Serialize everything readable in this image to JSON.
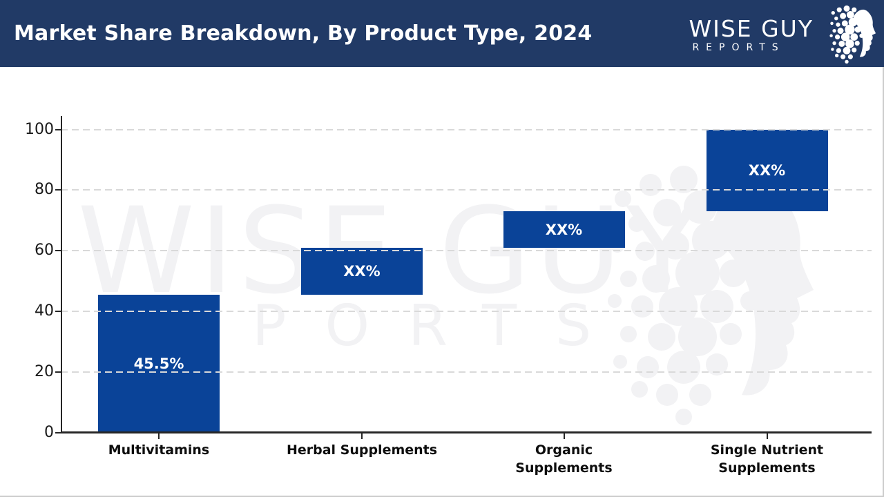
{
  "header": {
    "title": "Market Share Breakdown, By Product Type, 2024",
    "logo_line1": "WISE GUY",
    "logo_line2": "REPORTS"
  },
  "watermark": {
    "line1": "WISE GUY",
    "line2": "PORTS"
  },
  "colors": {
    "header_bg": "#213a66",
    "bar": "#0a4398",
    "axis": "#262626",
    "gridline": "#d9d9d9",
    "watermark": "#f2f2f4",
    "bar_label_text": "#ffffff",
    "title_text": "#ffffff"
  },
  "chart_data": {
    "type": "bar",
    "subtype": "waterfall",
    "title": "Market Share Breakdown, By Product Type, 2024",
    "categories": [
      "Multivitamins",
      "Herbal Supplements",
      "Organic\nSupplements",
      "Single Nutrient\nSupplements"
    ],
    "segments": [
      {
        "category": "Multivitamins",
        "start": 0,
        "end": 45.5,
        "label": "45.5%"
      },
      {
        "category": "Herbal Supplements",
        "start": 45.5,
        "end": 61,
        "label": "XX%"
      },
      {
        "category": "Organic Supplements",
        "start": 61,
        "end": 73,
        "label": "XX%"
      },
      {
        "category": "Single Nutrient Supplements",
        "start": 73,
        "end": 100,
        "label": "XX%"
      }
    ],
    "ylim": [
      0,
      100
    ],
    "yticks": [
      0,
      20,
      40,
      60,
      80,
      100
    ],
    "xlabel": "",
    "ylabel": "",
    "grid": "dashed-horizontal",
    "legend": "none"
  }
}
